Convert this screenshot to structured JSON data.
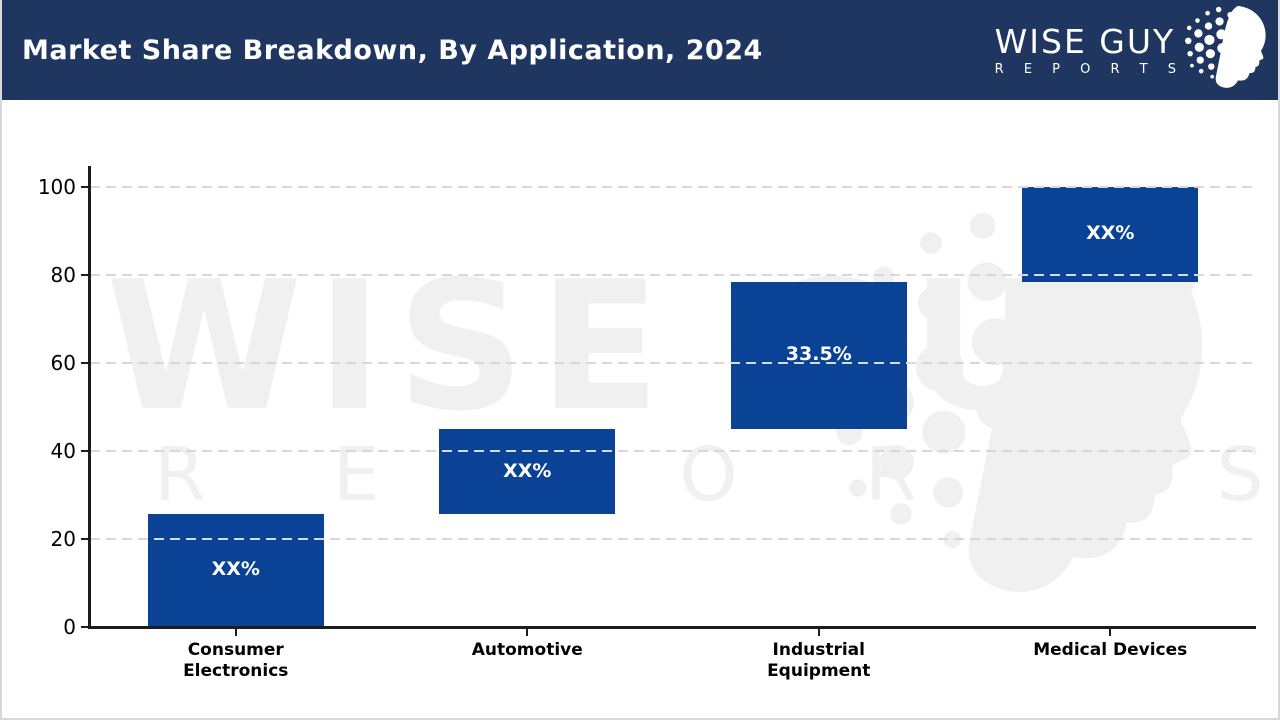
{
  "header": {
    "title": "Market Share Breakdown, By Application, 2024",
    "logo": {
      "line1": "WISE GUY",
      "line2": "R E P O R T S"
    }
  },
  "watermark": {
    "line1": "WISE GUY",
    "line2": "R E P O R T S"
  },
  "colors": {
    "header_bg": "#1f3660",
    "bar": "#0a4396",
    "grid": "#d8d8d8",
    "axis": "#1c1c1c",
    "bar_label": "#ffffff",
    "watermark": "#f0f0f0"
  },
  "chart_data": {
    "type": "bar",
    "subtype": "floating-waterfall (each bar starts where the previous one ends)",
    "title": "Market Share Breakdown, By Application, 2024",
    "categories": [
      "Consumer Electronics",
      "Automotive",
      "Industrial Equipment",
      "Medical Devices"
    ],
    "segments": [
      {
        "category": "Consumer Electronics",
        "start": 0,
        "end": 25.7,
        "label": "XX%"
      },
      {
        "category": "Automotive",
        "start": 25.7,
        "end": 44.9,
        "label": "XX%"
      },
      {
        "category": "Industrial Equipment",
        "start": 44.9,
        "end": 78.4,
        "label": "33.5%"
      },
      {
        "category": "Medical Devices",
        "start": 78.4,
        "end": 100,
        "label": "XX%"
      }
    ],
    "xlabel": "",
    "ylabel": "",
    "ylim": [
      0,
      100
    ],
    "yticks": [
      0,
      20,
      40,
      60,
      80,
      100
    ],
    "grid": "horizontal dashed gridlines, drawn above bars",
    "legend_position": "none"
  }
}
